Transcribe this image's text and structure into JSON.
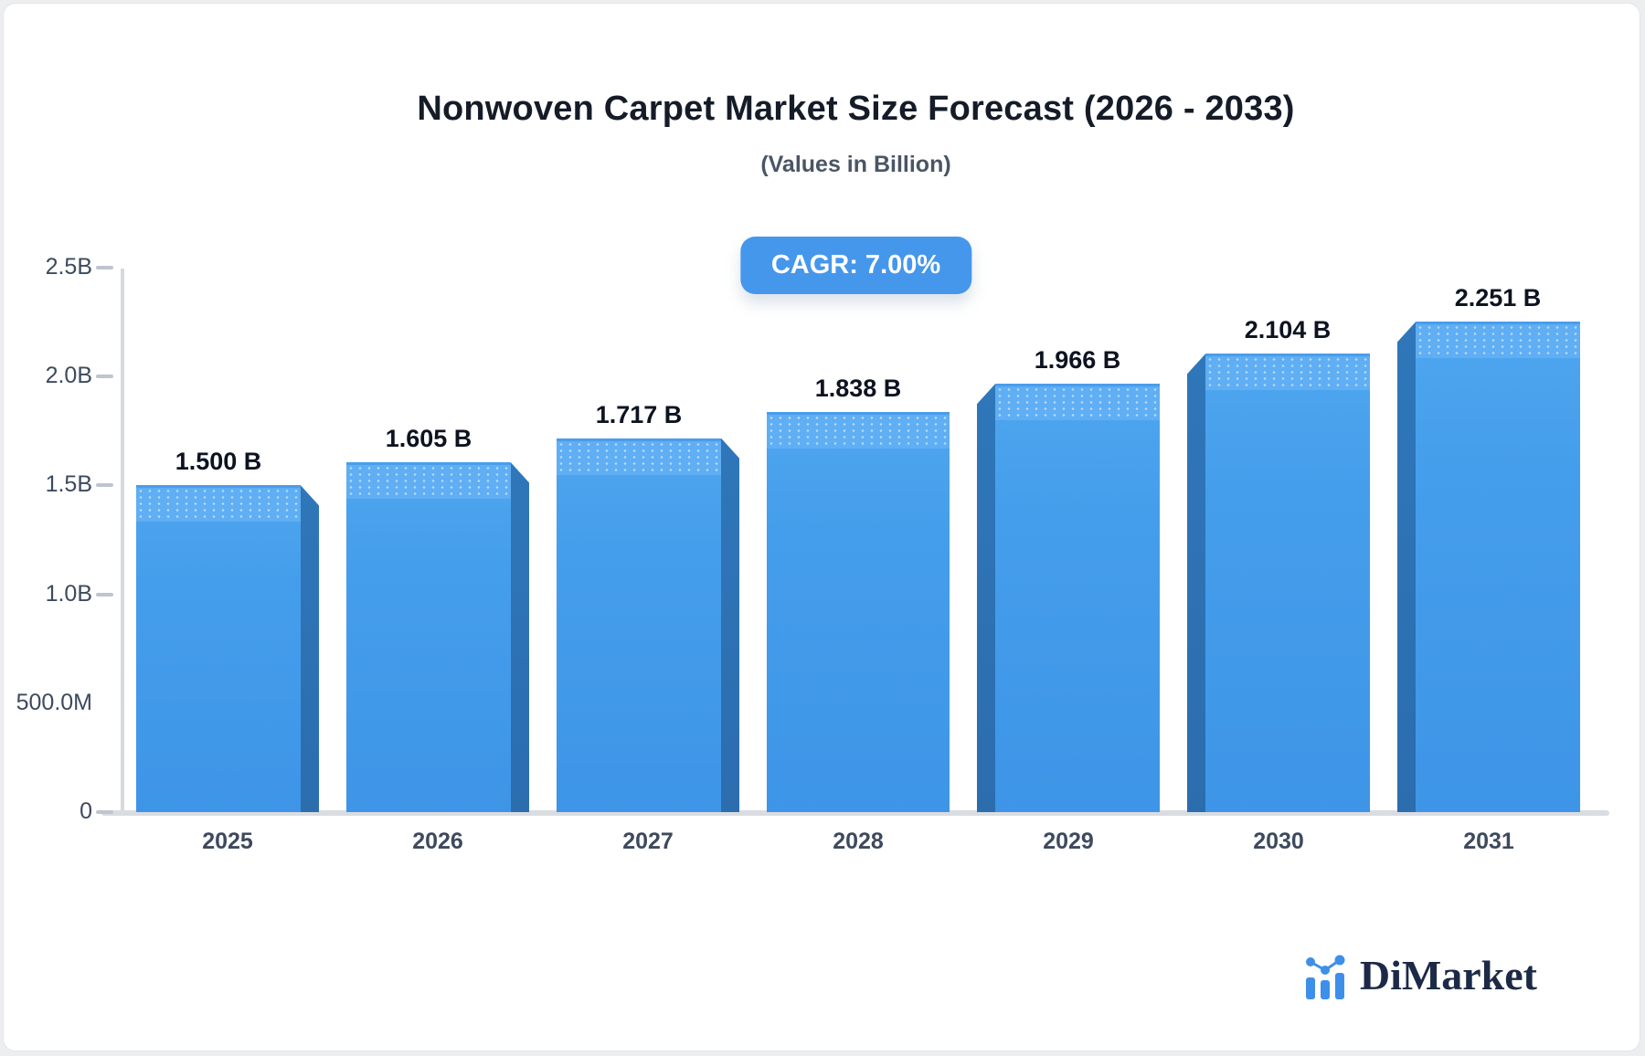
{
  "header": {
    "title": "Nonwoven Carpet Market Size Forecast (2026 - 2033)",
    "subtitle": "(Values in Billion)",
    "cagr_label": "CAGR: 7.00%"
  },
  "chart_data": {
    "type": "bar",
    "title": "Nonwoven Carpet Market Size Forecast (2026 - 2033)",
    "subtitle": "(Values in Billion)",
    "cagr": "7.00%",
    "unit": "Billion",
    "categories": [
      "2025",
      "2026",
      "2027",
      "2028",
      "2029",
      "2030",
      "2031"
    ],
    "values": [
      1.5,
      1.605,
      1.717,
      1.838,
      1.966,
      2.104,
      2.251
    ],
    "value_labels": [
      "1.500 B",
      "1.605 B",
      "1.717 B",
      "1.838 B",
      "1.966 B",
      "2.104 B",
      "2.251 B"
    ],
    "xlabel": "",
    "ylabel": "",
    "ylim": [
      0,
      2.5
    ],
    "grid": false,
    "legend": false,
    "yticks": [
      {
        "value": 0,
        "label": "0",
        "dash": true
      },
      {
        "value": 0.5,
        "label": "500.0M",
        "dash": false
      },
      {
        "value": 1.0,
        "label": "1.0B",
        "dash": true
      },
      {
        "value": 1.5,
        "label": "1.5B",
        "dash": true
      },
      {
        "value": 2.0,
        "label": "2.0B",
        "dash": true
      },
      {
        "value": 2.5,
        "label": "2.5B",
        "dash": true
      }
    ],
    "bar_color": "#429BEA",
    "bar_cap_color": "#60AEF3",
    "bar_side_color": "#2F77BA"
  },
  "colors": {
    "accent_blue": "#4597EC",
    "axis_gray": "#D9DCE1",
    "tick_gray": "#BEC5CF",
    "text_dark": "#0D1320",
    "text_slate": "#3D4A5E"
  },
  "logo": {
    "text": "DiMarket",
    "icon": "bar-chart-logo-icon"
  }
}
